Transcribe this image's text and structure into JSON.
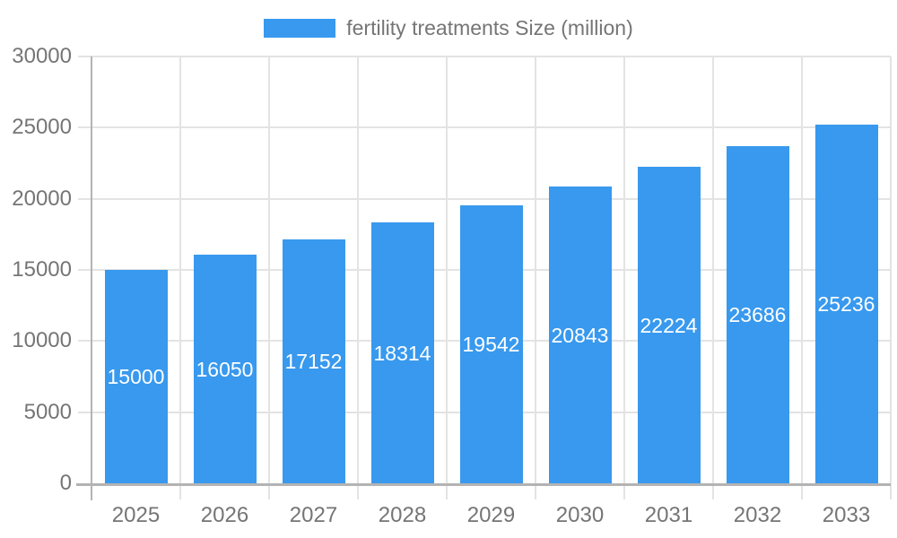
{
  "legend": {
    "label": "fertility treatments Size (million)"
  },
  "colors": {
    "bar": "#3899EE",
    "grid": "#e3e3e3",
    "axis": "#b3b3b3",
    "text": "#757575",
    "bar_label": "#ffffff",
    "background": "#ffffff"
  },
  "chart_data": {
    "type": "bar",
    "title": "",
    "xlabel": "",
    "ylabel": "",
    "categories": [
      "2025",
      "2026",
      "2027",
      "2028",
      "2029",
      "2030",
      "2031",
      "2032",
      "2033"
    ],
    "series": [
      {
        "name": "fertility treatments Size (million)",
        "values": [
          15000,
          16050,
          17152,
          18314,
          19542,
          20843,
          22224,
          23686,
          25236
        ]
      }
    ],
    "bar_labels": [
      15000,
      16050,
      17152,
      18314,
      19542,
      20843,
      22224,
      23686,
      25236
    ],
    "ylim": [
      0,
      30000
    ],
    "ytick_interval": 5000,
    "ytick_labels": [
      "0",
      "5000",
      "10000",
      "15000",
      "20000",
      "25000",
      "30000"
    ],
    "grid": true,
    "legend_position": "top"
  }
}
